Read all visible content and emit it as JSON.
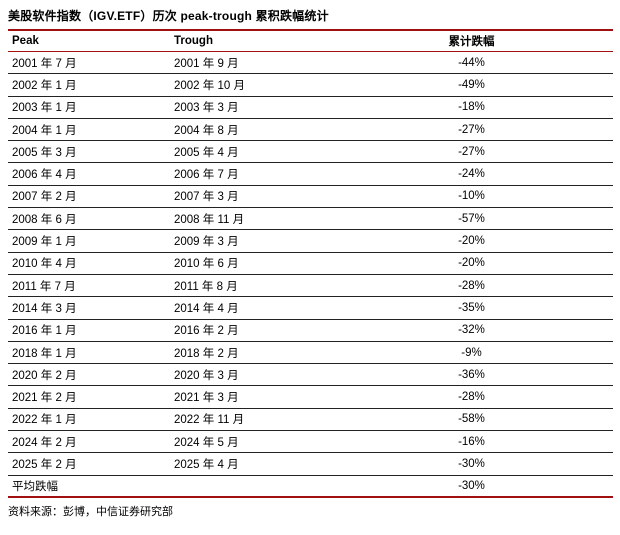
{
  "title": "美股软件指数（IGV.ETF）历次 peak-trough 累积跌幅统计",
  "table": {
    "headers": {
      "peak": "Peak",
      "trough": "Trough",
      "drawdown": "累计跌幅"
    },
    "rows": [
      {
        "peak": "2001 年 7 月",
        "trough": "2001 年 9 月",
        "drawdown": "-44%"
      },
      {
        "peak": "2002 年 1 月",
        "trough": "2002 年 10 月",
        "drawdown": "-49%"
      },
      {
        "peak": "2003 年 1 月",
        "trough": "2003 年 3 月",
        "drawdown": "-18%"
      },
      {
        "peak": "2004 年 1 月",
        "trough": "2004 年 8 月",
        "drawdown": "-27%"
      },
      {
        "peak": "2005 年 3 月",
        "trough": "2005 年 4 月",
        "drawdown": "-27%"
      },
      {
        "peak": "2006 年 4 月",
        "trough": "2006 年 7 月",
        "drawdown": "-24%"
      },
      {
        "peak": "2007 年 2 月",
        "trough": "2007 年 3 月",
        "drawdown": "-10%"
      },
      {
        "peak": "2008 年 6 月",
        "trough": "2008 年 11 月",
        "drawdown": "-57%"
      },
      {
        "peak": "2009 年 1 月",
        "trough": "2009 年 3 月",
        "drawdown": "-20%"
      },
      {
        "peak": "2010 年 4 月",
        "trough": "2010 年 6 月",
        "drawdown": "-20%"
      },
      {
        "peak": "2011 年 7 月",
        "trough": "2011 年 8 月",
        "drawdown": "-28%"
      },
      {
        "peak": "2014 年 3 月",
        "trough": "2014 年 4 月",
        "drawdown": "-35%"
      },
      {
        "peak": "2016 年 1 月",
        "trough": "2016 年 2 月",
        "drawdown": "-32%"
      },
      {
        "peak": "2018 年 1 月",
        "trough": "2018 年 2 月",
        "drawdown": "-9%"
      },
      {
        "peak": "2020 年 2 月",
        "trough": "2020 年 3 月",
        "drawdown": "-36%"
      },
      {
        "peak": "2021 年 2 月",
        "trough": "2021 年 3 月",
        "drawdown": "-28%"
      },
      {
        "peak": "2022 年 1 月",
        "trough": "2022 年 11 月",
        "drawdown": "-58%"
      },
      {
        "peak": "2024 年 2 月",
        "trough": "2024 年 5 月",
        "drawdown": "-16%"
      },
      {
        "peak": "2025 年 2 月",
        "trough": "2025 年 4 月",
        "drawdown": "-30%"
      }
    ],
    "summary": {
      "label": "平均跌幅",
      "drawdown": "-30%"
    }
  },
  "source": "资料来源：彭博，中信证券研究部",
  "colors": {
    "accent_red": "#a01010",
    "row_line": "#222222"
  }
}
